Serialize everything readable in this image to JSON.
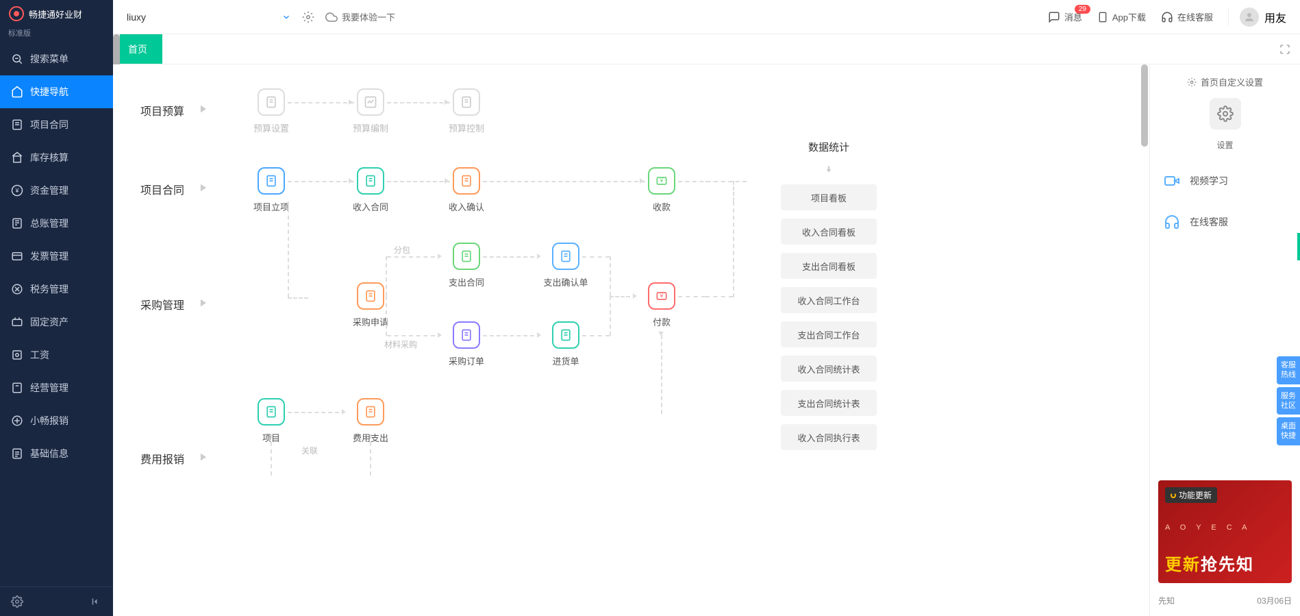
{
  "brand": {
    "name": "畅捷通好业财",
    "edition": "标准版"
  },
  "sidebar": {
    "items": [
      {
        "label": "搜索菜单",
        "icon": "search"
      },
      {
        "label": "快捷导航",
        "icon": "home",
        "active": true
      },
      {
        "label": "项目合同",
        "icon": "doc"
      },
      {
        "label": "库存核算",
        "icon": "house"
      },
      {
        "label": "资金管理",
        "icon": "money"
      },
      {
        "label": "总账管理",
        "icon": "ledger"
      },
      {
        "label": "发票管理",
        "icon": "invoice"
      },
      {
        "label": "税务管理",
        "icon": "tax"
      },
      {
        "label": "固定资产",
        "icon": "asset"
      },
      {
        "label": "工资",
        "icon": "salary"
      },
      {
        "label": "经营管理",
        "icon": "biz"
      },
      {
        "label": "小畅报销",
        "icon": "reimburse"
      },
      {
        "label": "基础信息",
        "icon": "info"
      }
    ]
  },
  "topbar": {
    "user": "liuxy",
    "experience": "我要体验一下",
    "messages": {
      "label": "消息",
      "count": 29
    },
    "appDownload": "App下载",
    "onlineService": "在线客服",
    "username": "用友"
  },
  "tabs": {
    "home": "首页"
  },
  "flow": {
    "sections": {
      "budget": {
        "title": "项目预算",
        "nodes": [
          "预算设置",
          "预算编制",
          "预算控制"
        ]
      },
      "contract": {
        "title": "项目合同",
        "nodes": [
          "项目立项",
          "收入合同",
          "收入确认",
          "收款"
        ]
      },
      "purchase": {
        "title": "采购管理",
        "node_apply": "采购申请",
        "branch1_label": "分包",
        "branch1_nodes": [
          "支出合同",
          "支出确认单"
        ],
        "branch2_label": "材料采购",
        "branch2_nodes": [
          "采购订单",
          "进货单"
        ],
        "node_pay": "付款"
      },
      "expense": {
        "title": "费用报销",
        "node_project": "项目",
        "node_spend": "费用支出",
        "link_label": "关联"
      }
    },
    "stats": {
      "title": "数据统计",
      "buttons": [
        "项目看板",
        "收入合同看板",
        "支出合同看板",
        "收入合同工作台",
        "支出合同工作台",
        "收入合同统计表",
        "支出合同统计表",
        "收入合同执行表"
      ]
    },
    "colors": {
      "blue": "#4aa8ff",
      "teal": "#2ecfb0",
      "orange": "#ff9a5a",
      "green": "#6bd67a",
      "red": "#ff6b6b",
      "lightblue": "#5ab0ff",
      "purple": "#8a7aff",
      "disabled": "#dddddd"
    }
  },
  "rightPanel": {
    "title": "首页自定义设置",
    "settingsLabel": "设置",
    "links": [
      {
        "label": "视频学习",
        "icon": "video"
      },
      {
        "label": "在线客服",
        "icon": "headset"
      }
    ],
    "banner": {
      "tag": "功能更新",
      "line1": "更新",
      "line2": "抢先知",
      "sub": "A O Y E C A"
    },
    "footer": {
      "text": "先知",
      "date": "03月06日"
    }
  },
  "floatButtons": [
    "客服热线",
    "服务社区",
    "桌面快捷"
  ]
}
